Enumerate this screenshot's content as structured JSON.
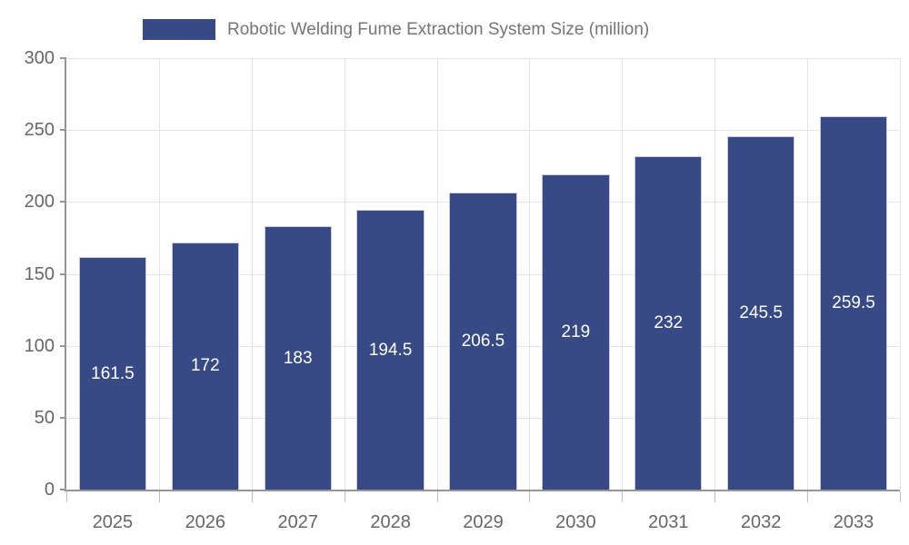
{
  "legend": {
    "series_label": "Robotic Welding Fume Extraction System Size (million)"
  },
  "colors": {
    "bar_fill": "#374A85",
    "bar_stroke": "#c6cadc",
    "bar_label": "#ffffff",
    "axis_line": "#969696",
    "gridline": "#e4e4e4",
    "tick_label": "#666666",
    "title_text": "#757575"
  },
  "chart_data": {
    "type": "bar",
    "title": "Robotic Welding Fume Extraction System Size (million)",
    "categories": [
      "2025",
      "2026",
      "2027",
      "2028",
      "2029",
      "2030",
      "2031",
      "2032",
      "2033"
    ],
    "values": [
      161.5,
      172,
      183,
      194.5,
      206.5,
      219,
      232,
      245.5,
      259.5
    ],
    "value_labels": [
      "161.5",
      "172",
      "183",
      "194.5",
      "206.5",
      "219",
      "232",
      "245.5",
      "259.5"
    ],
    "xlabel": "",
    "ylabel": "",
    "ylim": [
      0,
      300
    ],
    "yticks": [
      0,
      50,
      100,
      150,
      200,
      250,
      300
    ],
    "grid": true,
    "legend_position": "top",
    "bar_labels_inside": true
  }
}
